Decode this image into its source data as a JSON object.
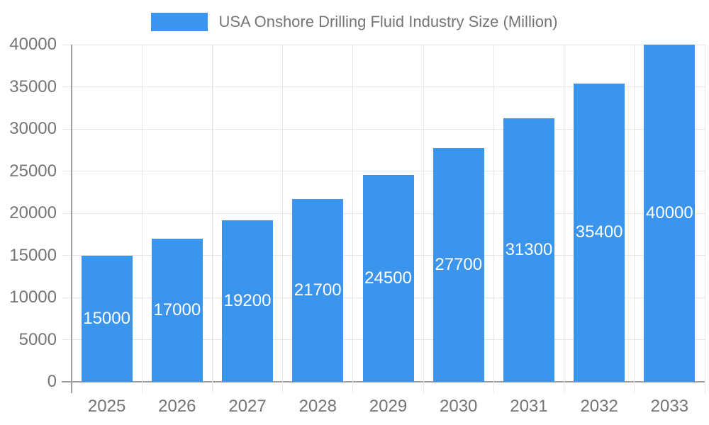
{
  "chart_data": {
    "type": "bar",
    "title": "USA Onshore Drilling Fluid Industry Size (Million)",
    "categories": [
      "2025",
      "2026",
      "2027",
      "2028",
      "2029",
      "2030",
      "2031",
      "2032",
      "2033"
    ],
    "values": [
      15000,
      17000,
      19200,
      21700,
      24500,
      27700,
      31300,
      35400,
      40000
    ],
    "bar_labels": [
      "15000",
      "17000",
      "19200",
      "21700",
      "24500",
      "27700",
      "31300",
      "35400",
      "40000"
    ],
    "xlabel": "",
    "ylabel": "",
    "ylim": [
      0,
      40000
    ],
    "yticks": [
      0,
      5000,
      10000,
      15000,
      20000,
      25000,
      30000,
      35000,
      40000
    ],
    "grid": true,
    "legend_position": "top",
    "legend_entries": [
      "USA Onshore Drilling Fluid Industry Size (Million)"
    ],
    "colors": {
      "bar": "#3B95ED",
      "gridline": "#E6E6E6",
      "axis": "#9E9E9E",
      "tick_label": "#757575",
      "value_label": "#FFFFFF",
      "background": "#FFFFFF"
    }
  }
}
